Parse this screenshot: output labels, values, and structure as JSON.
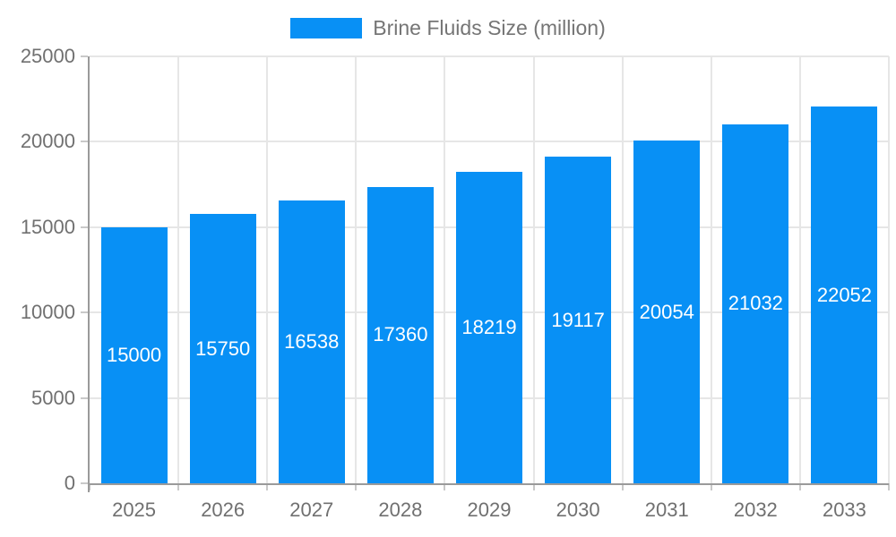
{
  "legend": {
    "label": "Brine Fluids Size (million)"
  },
  "colors": {
    "bar": "#0890f5",
    "legend_text": "#757575",
    "axis_text": "#707070",
    "grid_line": "#e6e6e6",
    "axis_line": "#9a9a9a",
    "tick_mark": "#c9c9c9",
    "value_label": "#ffffff",
    "background": "#ffffff"
  },
  "chart_data": {
    "type": "bar",
    "title": "Brine Fluids Size (million)",
    "legend_entries": [
      "Brine Fluids Size (million)"
    ],
    "legend_position": "top",
    "categories": [
      "2025",
      "2026",
      "2027",
      "2028",
      "2029",
      "2030",
      "2031",
      "2032",
      "2033"
    ],
    "series": [
      {
        "name": "Brine Fluids Size (million)",
        "values": [
          15000,
          15750,
          16538,
          17360,
          18219,
          19117,
          20054,
          21032,
          22052
        ]
      }
    ],
    "value_labels": [
      15000,
      15750,
      16538,
      17360,
      18219,
      19117,
      20054,
      21032,
      22052
    ],
    "value_label_position": "inside-center",
    "xlabel": "",
    "ylabel": "",
    "ylim": [
      0,
      25000
    ],
    "yticks": [
      0,
      5000,
      10000,
      15000,
      20000,
      25000
    ],
    "grid": true
  }
}
